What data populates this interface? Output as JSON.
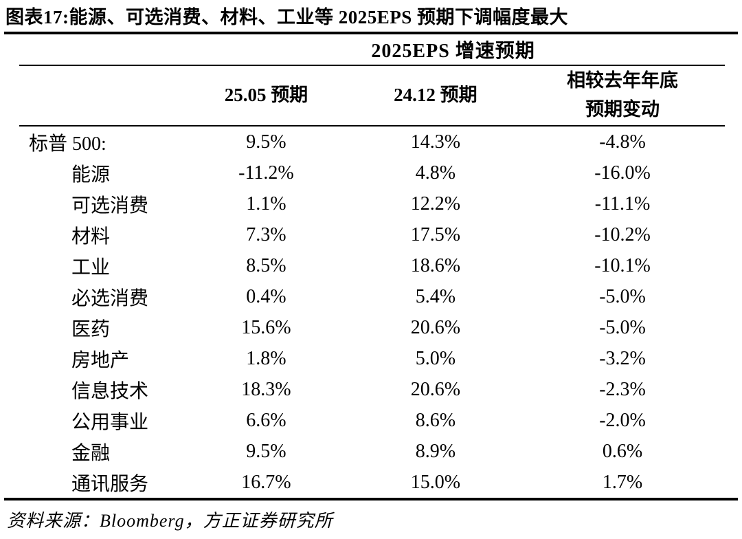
{
  "title": "图表17:能源、可选消费、材料、工业等 2025EPS 预期下调幅度最大",
  "table": {
    "group_header": "2025EPS 增速预期",
    "columns": [
      "25.05 预期",
      "24.12 预期",
      "相较去年年底\n预期变动"
    ],
    "rows": [
      {
        "label": "标普 500:",
        "indent": false,
        "values": [
          "9.5%",
          "14.3%",
          "-4.8%"
        ]
      },
      {
        "label": "能源",
        "indent": true,
        "values": [
          "-11.2%",
          "4.8%",
          "-16.0%"
        ]
      },
      {
        "label": "可选消费",
        "indent": true,
        "values": [
          "1.1%",
          "12.2%",
          "-11.1%"
        ]
      },
      {
        "label": "材料",
        "indent": true,
        "values": [
          "7.3%",
          "17.5%",
          "-10.2%"
        ]
      },
      {
        "label": "工业",
        "indent": true,
        "values": [
          "8.5%",
          "18.6%",
          "-10.1%"
        ]
      },
      {
        "label": "必选消费",
        "indent": true,
        "values": [
          "0.4%",
          "5.4%",
          "-5.0%"
        ]
      },
      {
        "label": "医药",
        "indent": true,
        "values": [
          "15.6%",
          "20.6%",
          "-5.0%"
        ]
      },
      {
        "label": "房地产",
        "indent": true,
        "values": [
          "1.8%",
          "5.0%",
          "-3.2%"
        ]
      },
      {
        "label": "信息技术",
        "indent": true,
        "values": [
          "18.3%",
          "20.6%",
          "-2.3%"
        ]
      },
      {
        "label": "公用事业",
        "indent": true,
        "values": [
          "6.6%",
          "8.6%",
          "-2.0%"
        ]
      },
      {
        "label": "金融",
        "indent": true,
        "values": [
          "9.5%",
          "8.9%",
          "0.6%"
        ]
      },
      {
        "label": "通讯服务",
        "indent": true,
        "values": [
          "16.7%",
          "15.0%",
          "1.7%"
        ]
      }
    ]
  },
  "footer": "资料来源：Bloomberg，方正证券研究所",
  "colors": {
    "text": "#000000",
    "background": "#ffffff",
    "rule": "#000000"
  },
  "chart_data": {
    "type": "table",
    "title": "图表17:能源、可选消费、材料、工业等 2025EPS 预期下调幅度最大",
    "group_header": "2025EPS 增速预期",
    "columns": [
      "25.05 预期",
      "24.12 预期",
      "相较去年年底 预期变动"
    ],
    "categories": [
      "标普 500:",
      "能源",
      "可选消费",
      "材料",
      "工业",
      "必选消费",
      "医药",
      "房地产",
      "信息技术",
      "公用事业",
      "金融",
      "通讯服务"
    ],
    "series": [
      {
        "name": "25.05 预期",
        "values": [
          9.5,
          -11.2,
          1.1,
          7.3,
          8.5,
          0.4,
          15.6,
          1.8,
          18.3,
          6.6,
          9.5,
          16.7
        ]
      },
      {
        "name": "24.12 预期",
        "values": [
          14.3,
          4.8,
          12.2,
          17.5,
          18.6,
          5.4,
          20.6,
          5.0,
          20.6,
          8.6,
          8.9,
          15.0
        ]
      },
      {
        "name": "相较去年年底预期变动",
        "values": [
          -4.8,
          -16.0,
          -11.1,
          -10.2,
          -10.1,
          -5.0,
          -5.0,
          -3.2,
          -2.3,
          -2.0,
          0.6,
          1.7
        ]
      }
    ],
    "unit": "%",
    "source": "资料来源：Bloomberg，方正证券研究所"
  }
}
